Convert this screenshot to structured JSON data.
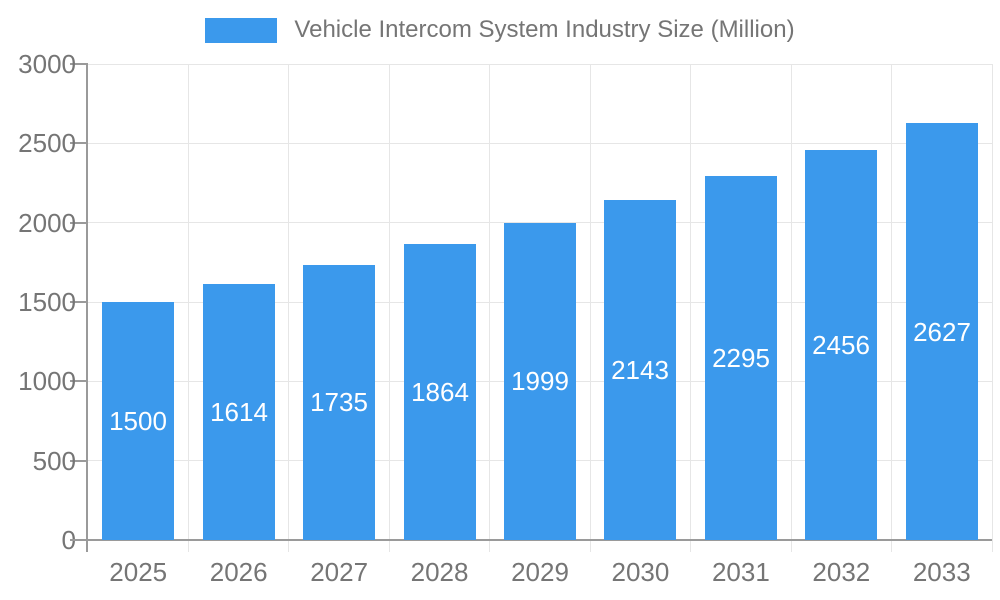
{
  "legend": {
    "label": "Vehicle Intercom System Industry Size (Million)"
  },
  "chart_data": {
    "type": "bar",
    "title": "Vehicle Intercom System Industry Size (Million)",
    "categories": [
      "2025",
      "2026",
      "2027",
      "2028",
      "2029",
      "2030",
      "2031",
      "2032",
      "2033"
    ],
    "series": [
      {
        "name": "Vehicle Intercom System Industry Size (Million)",
        "values": [
          1500,
          1614,
          1735,
          1864,
          1999,
          2143,
          2295,
          2456,
          2627
        ]
      }
    ],
    "xlabel": "",
    "ylabel": "",
    "ylim": [
      0,
      3000
    ],
    "y_ticks": [
      0,
      500,
      1000,
      1500,
      2000,
      2500,
      3000
    ],
    "grid": true,
    "legend_position": "top-center",
    "value_label_position": "inside-center",
    "colors": {
      "bar": "#3b99ec",
      "value_label": "#ffffff",
      "axis_text": "#757575",
      "axis_line": "#9a9a9a",
      "grid_line": "#e6e6e6",
      "background": "#ffffff"
    }
  }
}
